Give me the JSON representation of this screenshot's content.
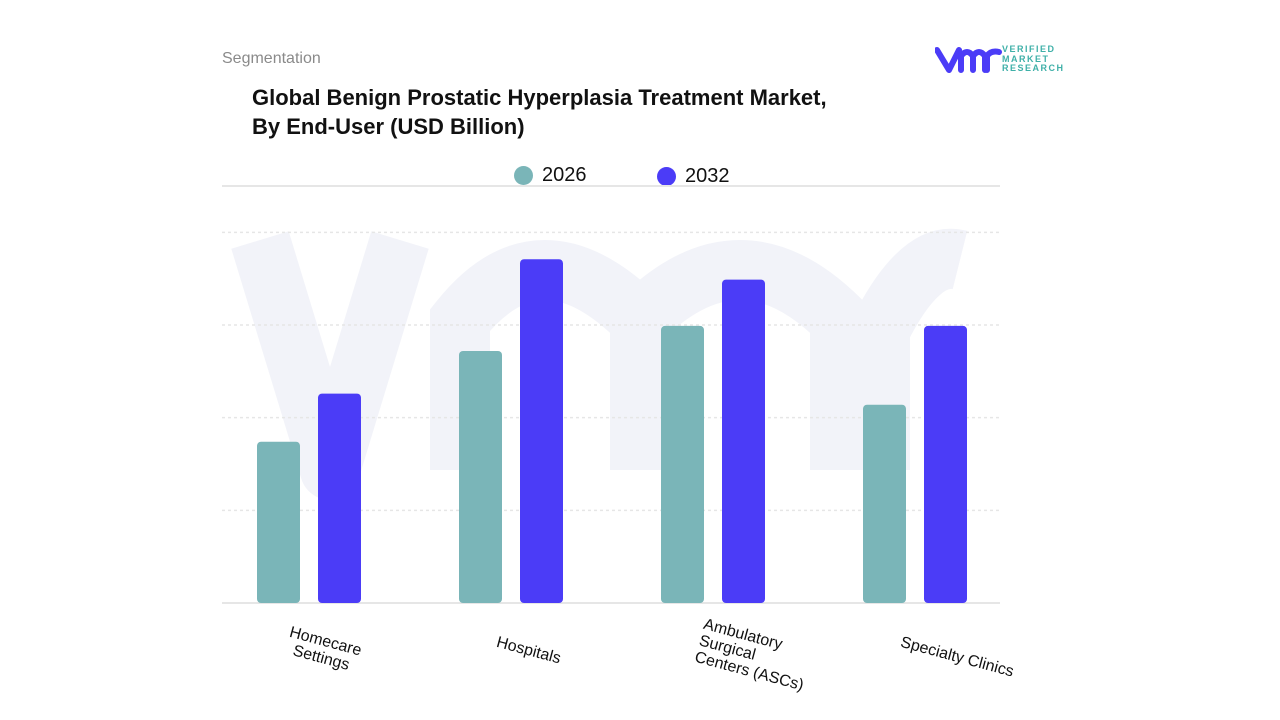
{
  "header": {
    "segment_label": "Segmentation",
    "title_line1": "Global Benign Prostatic Hyperplasia Treatment Market,",
    "title_line2": "By End-User (USD Billion)"
  },
  "logo": {
    "text": "VERIFIED MARKET RESEARCH",
    "line1": "VERIFIED",
    "line2": "MARKET",
    "line3": "RESEARCH"
  },
  "colors": {
    "series_2026": "#7ab5b8",
    "series_2032": "#4b3cf7",
    "grid": "#e6e6e6",
    "watermark": "#f1f2f9"
  },
  "chart_data": {
    "type": "bar",
    "title": "Global Benign Prostatic Hyperplasia Treatment Market, By End-User (USD Billion)",
    "categories": [
      "Homecare Settings",
      "Hospitals",
      "Ambulatory Surgical Centers (ASCs)",
      "Specialty Clinics"
    ],
    "series": [
      {
        "name": "2026",
        "values": [
          1.74,
          2.72,
          2.99,
          2.14
        ]
      },
      {
        "name": "2032",
        "values": [
          2.26,
          3.71,
          3.49,
          2.99
        ]
      }
    ],
    "ylim": [
      0,
      4.5
    ],
    "grid": true,
    "y_axis_labels_shown": false,
    "legend_placement": "top-center"
  }
}
